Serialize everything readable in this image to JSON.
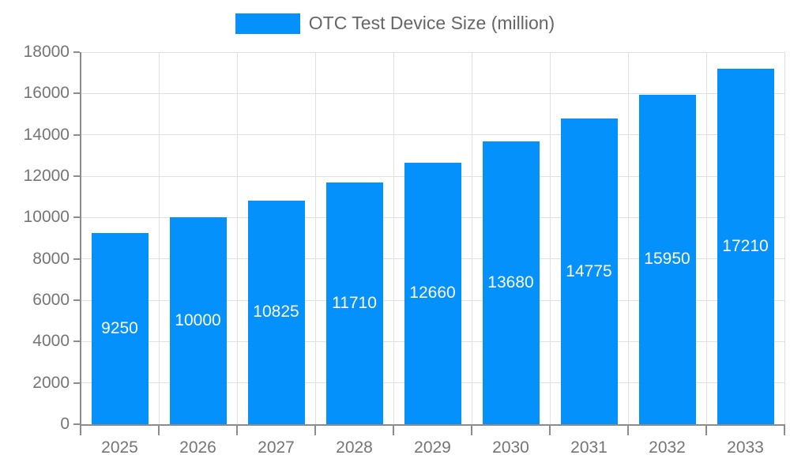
{
  "legend": {
    "label": "OTC Test Device Size (million)"
  },
  "colors": {
    "bar": "#0591fb",
    "axis": "#8c8c8c",
    "tick_label": "#757575",
    "legend_text": "#666666",
    "grid": "#e0e0e0",
    "value_label": "#ffffff",
    "background": "#ffffff"
  },
  "chart_data": {
    "type": "bar",
    "title": "OTC Test Device Size (million)",
    "categories": [
      "2025",
      "2026",
      "2027",
      "2028",
      "2029",
      "2030",
      "2031",
      "2032",
      "2033"
    ],
    "series": [
      {
        "name": "OTC Test Device Size (million)",
        "values": [
          9250,
          10000,
          10825,
          11710,
          12660,
          13680,
          14775,
          15950,
          17210
        ]
      }
    ],
    "xlabel": "",
    "ylabel": "",
    "ylim": [
      0,
      18000
    ],
    "ytick_step": 2000,
    "ytick_labels": [
      "0",
      "2000",
      "4000",
      "6000",
      "8000",
      "10000",
      "12000",
      "14000",
      "16000",
      "18000"
    ],
    "grid": true,
    "legend_position": "top-center",
    "value_label_position": "inside-middle"
  }
}
